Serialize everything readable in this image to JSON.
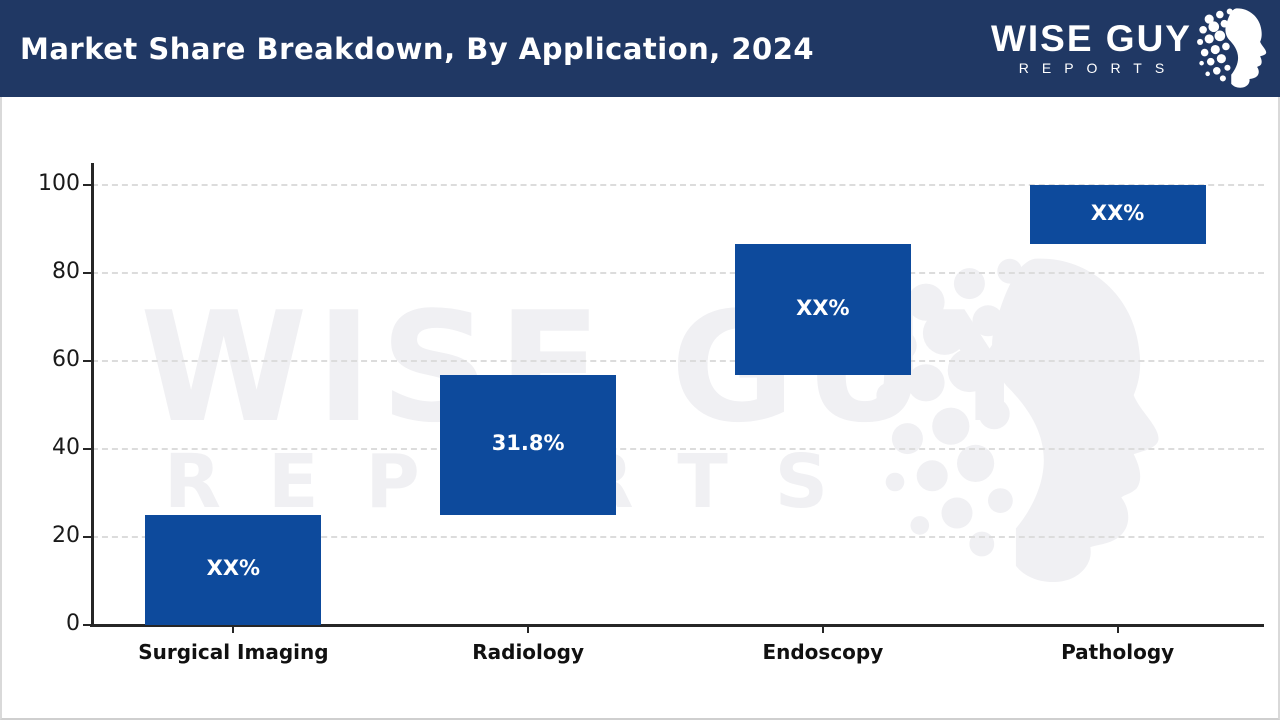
{
  "header": {
    "title": "Market Share Breakdown, By Application, 2024",
    "logo": {
      "line1": "WISE GUY",
      "line2": "REPORTS"
    }
  },
  "watermark": {
    "line1": "WISE GUY",
    "line2": "REPORTS"
  },
  "colors": {
    "header_bg": "#203864",
    "bar": "#0d4a9c",
    "grid": "#dcdcdc",
    "axis": "#262626",
    "bar_label": "#ffffff",
    "tick_label": "#1a1a1a",
    "watermark": "#f0f0f3",
    "border": "#d9d9d9"
  },
  "chart_data": {
    "type": "bar",
    "subtype": "floating-waterfall",
    "title": "Market Share Breakdown, By Application, 2024",
    "xlabel": "",
    "ylabel": "",
    "categories": [
      "Surgical Imaging",
      "Radiology",
      "Endoscopy",
      "Pathology"
    ],
    "series": [
      {
        "name": "Market share (%)",
        "segments": [
          {
            "category": "Surgical Imaging",
            "start": 0,
            "end": 25.0,
            "value_label": "XX%"
          },
          {
            "category": "Radiology",
            "start": 25.0,
            "end": 56.8,
            "value_label": "31.8%"
          },
          {
            "category": "Endoscopy",
            "start": 56.8,
            "end": 86.5,
            "value_label": "XX%"
          },
          {
            "category": "Pathology",
            "start": 86.5,
            "end": 100.0,
            "value_label": "XX%"
          }
        ]
      }
    ],
    "ylim": [
      0,
      105
    ],
    "yticks": [
      0,
      20,
      40,
      60,
      80,
      100
    ],
    "grid": "horizontal-dashed",
    "legend": "none",
    "bar_color": "#0d4a9c"
  }
}
